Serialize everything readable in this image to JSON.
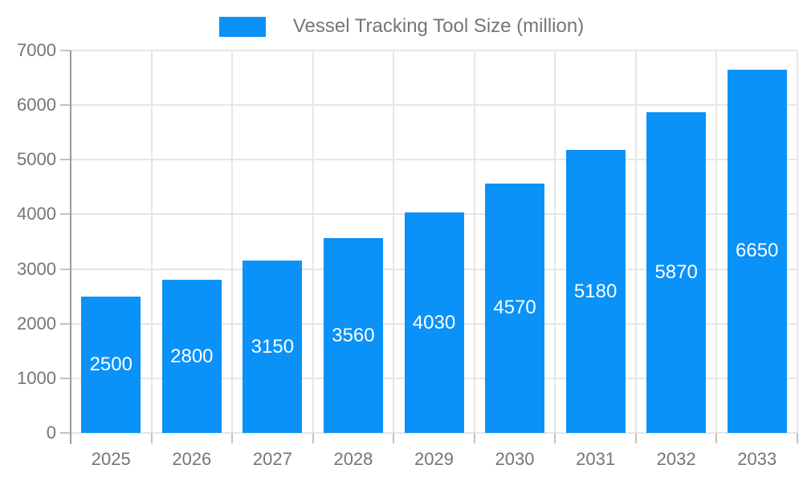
{
  "legend": {
    "label": "Vessel Tracking Tool Size (million)"
  },
  "colors": {
    "bar": "#0a92f8",
    "grid": "#e6e6e6",
    "axis_line": "#9a9a9a",
    "tick": "#c2c2c2",
    "axis_text": "#757575",
    "value_text": "#ffffff",
    "background": "#ffffff"
  },
  "chart_data": {
    "type": "bar",
    "title": "Vessel Tracking Tool Size (million)",
    "categories": [
      "2025",
      "2026",
      "2027",
      "2028",
      "2029",
      "2030",
      "2031",
      "2032",
      "2033"
    ],
    "values": [
      2500,
      2800,
      3150,
      3560,
      4030,
      4570,
      5180,
      5870,
      6650
    ],
    "xlabel": "",
    "ylabel": "",
    "ylim": [
      0,
      7000
    ],
    "ytick_step": 1000,
    "ytick_labels": [
      "0",
      "1000",
      "2000",
      "3000",
      "4000",
      "5000",
      "6000",
      "7000"
    ],
    "grid": true,
    "legend_position": "top-center",
    "value_labels": "inside-center",
    "bar_color": "#0a92f8"
  }
}
